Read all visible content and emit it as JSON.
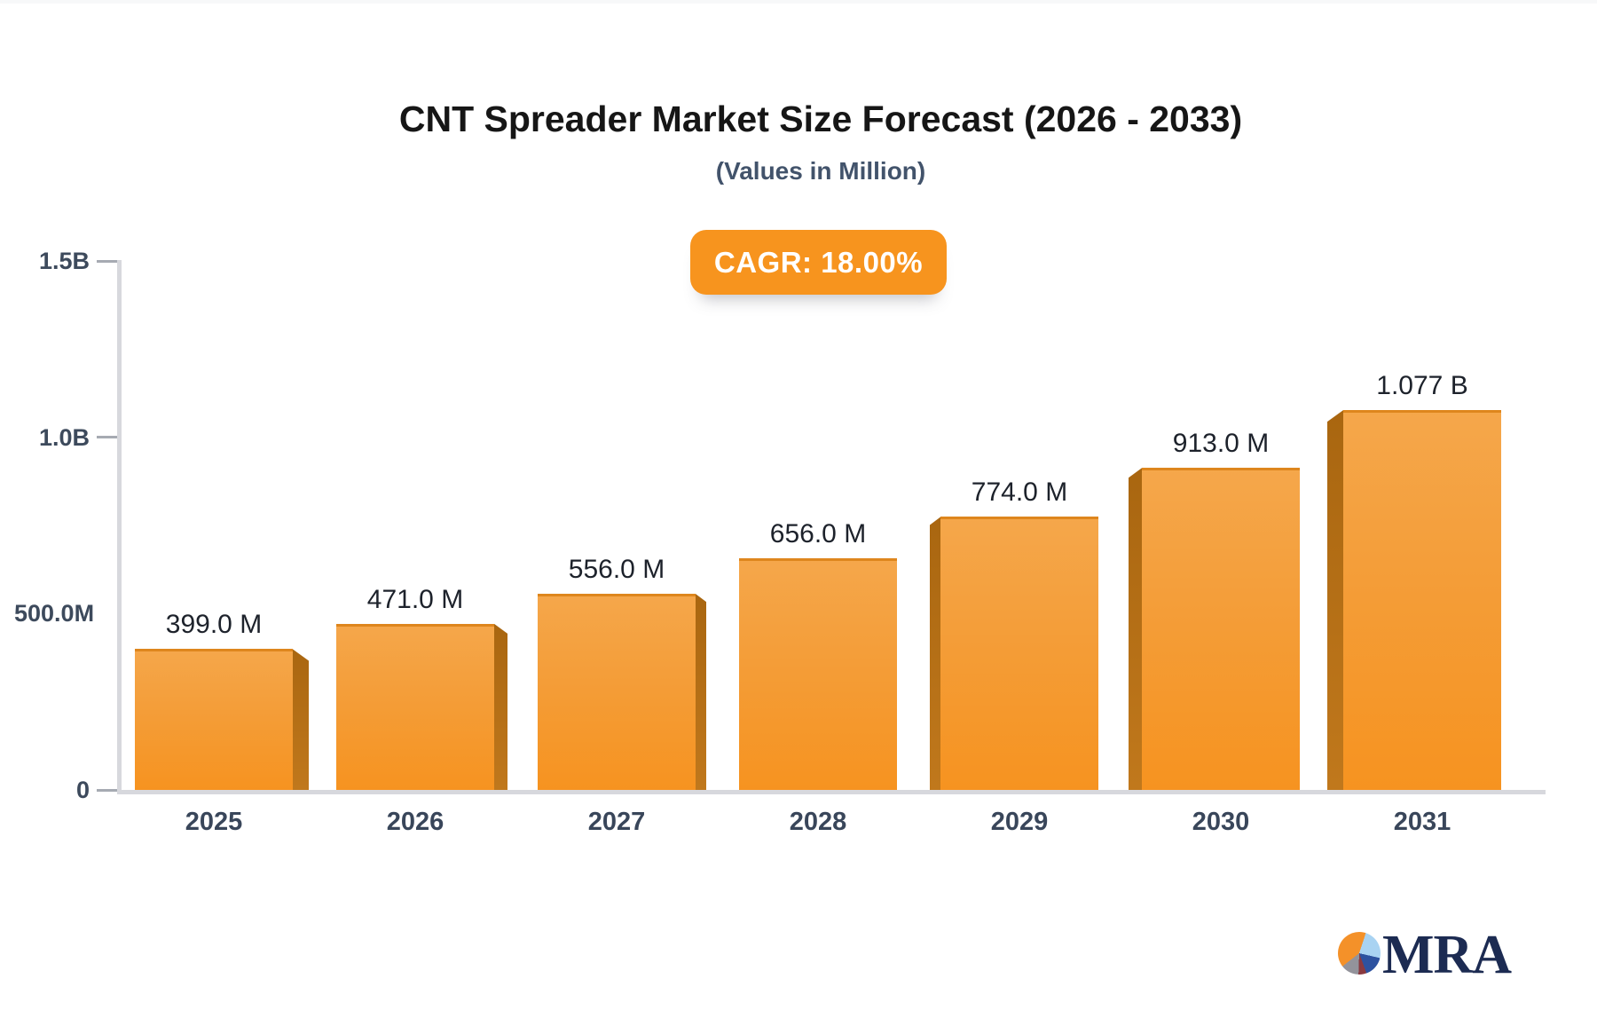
{
  "header": {
    "title": "CNT Spreader Market Size Forecast (2026 - 2033)",
    "subtitle": "(Values in Million)",
    "cagr_badge": "CAGR: 18.00%",
    "badge_color": "#f7941e"
  },
  "chart_data": {
    "type": "bar",
    "title": "CNT Spreader Market Size Forecast (2026 - 2033)",
    "subtitle": "(Values in Million)",
    "unit": "Million",
    "cagr_percent": 18.0,
    "categories": [
      "2025",
      "2026",
      "2027",
      "2028",
      "2029",
      "2030",
      "2031"
    ],
    "values": [
      399,
      471,
      556,
      656,
      774,
      913,
      1077
    ],
    "value_labels": [
      "399.0 M",
      "471.0 M",
      "556.0 M",
      "656.0 M",
      "774.0 M",
      "913.0 M",
      "1.077 B"
    ],
    "ylim": [
      0,
      1500
    ],
    "yticks": [
      {
        "label": "1.5B",
        "value": 1500,
        "tick_mark": true
      },
      {
        "label": "1.0B",
        "value": 1000,
        "tick_mark": true
      },
      {
        "label": "500.0M",
        "value": 500,
        "tick_mark": false
      },
      {
        "label": "0",
        "value": 0,
        "tick_mark": true
      }
    ],
    "grid": false,
    "legend": false,
    "bar_color_top": "#f5a74b",
    "bar_color_bottom": "#f69320",
    "bar_side_color": "#b87117",
    "axis_color": "#d7d8dd",
    "style": "3d-perspective-bars"
  },
  "logo": {
    "text": "MRA",
    "pie_colors": [
      "#f49129",
      "#a9d3f2",
      "#2d52a0",
      "#8a3a40",
      "#93939b"
    ],
    "text_color": "#1c2b52"
  }
}
